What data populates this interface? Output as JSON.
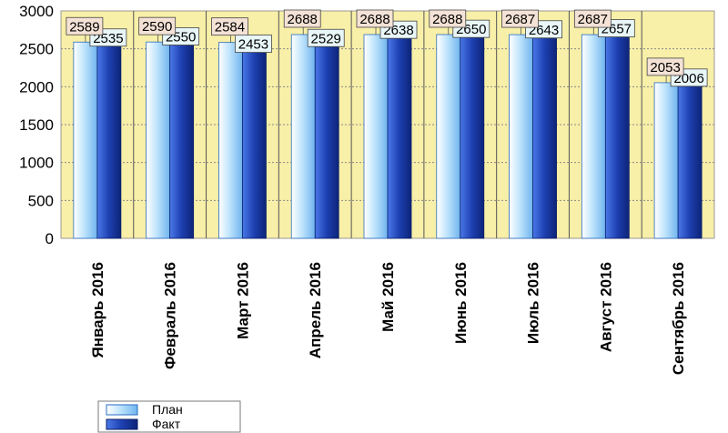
{
  "chart_data": {
    "type": "bar",
    "categories": [
      "Январь 2016",
      "Февраль 2016",
      "Март 2016",
      "Апрель 2016",
      "Май 2016",
      "Июнь 2016",
      "Июль 2016",
      "Август 2016",
      "Сентябрь 2016"
    ],
    "series": [
      {
        "name": "План",
        "values": [
          2589,
          2590,
          2584,
          2688,
          2688,
          2688,
          2687,
          2687,
          2053
        ],
        "color": "#a8d8f8"
      },
      {
        "name": "Факт",
        "values": [
          2535,
          2550,
          2453,
          2529,
          2638,
          2650,
          2643,
          2657,
          2006
        ],
        "color": "#1c3fae"
      }
    ],
    "ylim": [
      0,
      3000
    ],
    "yticks": [
      0,
      500,
      1000,
      1500,
      2000,
      2500,
      3000
    ],
    "grid": true,
    "legend_position": "bottom",
    "plot_background": "#f8efa8",
    "data_label_fills": {
      "План": "#f4e2d6",
      "Факт": "#e8f6f8"
    }
  }
}
